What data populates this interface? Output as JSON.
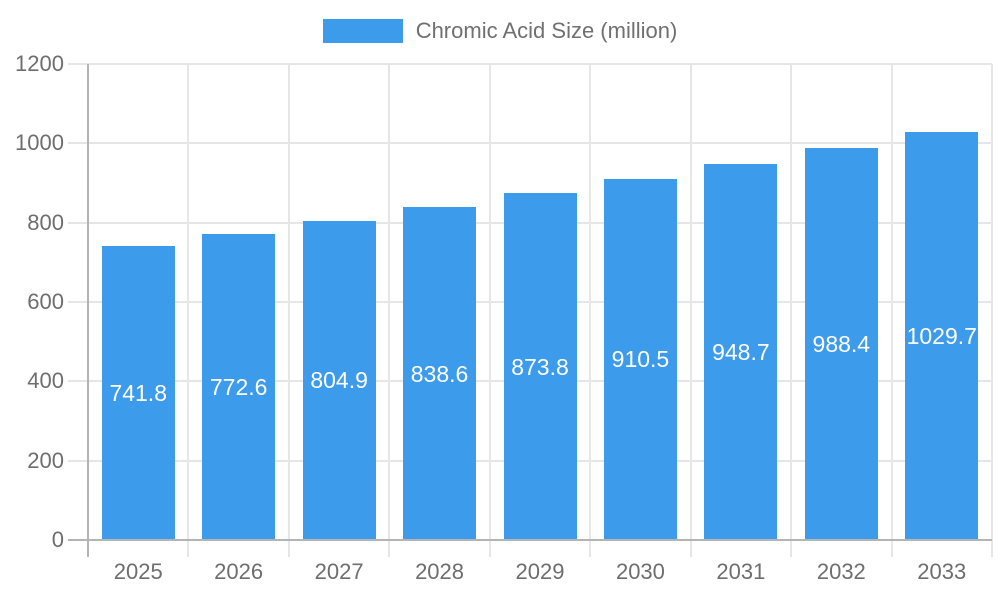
{
  "chart_data": {
    "type": "bar",
    "title": "Chromic Acid Size (million)",
    "legend": {
      "position": "top",
      "label": "Chromic Acid Size (million)"
    },
    "categories": [
      "2025",
      "2026",
      "2027",
      "2028",
      "2029",
      "2030",
      "2031",
      "2032",
      "2033"
    ],
    "values": [
      741.8,
      772.6,
      804.9,
      838.6,
      873.8,
      910.5,
      948.7,
      988.4,
      1029.7
    ],
    "bar_value_labels": [
      "741.8",
      "772.6",
      "804.9",
      "838.6",
      "873.8",
      "910.5",
      "948.7",
      "988.4",
      "1029.7"
    ],
    "xlabel": "",
    "ylabel": "",
    "ylim": [
      0,
      1200
    ],
    "yticks": [
      0,
      200,
      400,
      600,
      800,
      1000,
      1200
    ],
    "grid": true,
    "colors": {
      "bar": "#3d9bec",
      "axis_text": "#6e6e6e",
      "legend_text": "#707070",
      "grid_line": "#e6e6e6",
      "axis_line": "#b4b4b4",
      "bar_label_text": "#ffffff",
      "background": "#ffffff"
    }
  }
}
